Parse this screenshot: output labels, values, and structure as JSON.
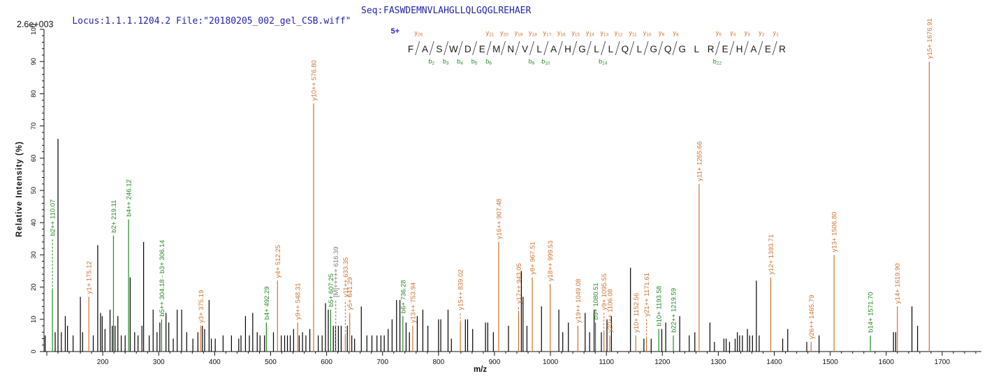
{
  "header": {
    "locus_text": "Locus:1.1.1.1204.2 File:\"20180205_002_gel_CSB.wiff\"",
    "seq_label": "Seq:",
    "sequence": "FASWDEMNVLAHGLLQLGQGLREHAER",
    "max_intensity": "2.6e+003"
  },
  "colors": {
    "header_blue": "#2323ae",
    "y_ion_orange": "#d2722e",
    "b_ion_green": "#228b22",
    "precursor_grey": "#7d7d7d",
    "peak_black": "#000000",
    "axis_black": "#111111"
  },
  "annotation": {
    "charge": "5+",
    "residues": [
      "F",
      "A",
      "S",
      "W",
      "D",
      "E",
      "M",
      "N",
      "V",
      "L",
      "A",
      "H",
      "G",
      "L",
      "L",
      "Q",
      "L",
      "G",
      "Q",
      "G",
      "L",
      "R",
      "E",
      "H",
      "A",
      "E",
      "R"
    ],
    "y_ions": {
      "1": "y26",
      "6": "y21",
      "7": "y20",
      "8": "y19",
      "9": "y18",
      "10": "y17",
      "11": "y16",
      "12": "y15",
      "13": "y14",
      "14": "y13",
      "15": "y12",
      "16": "y11",
      "17": "y10",
      "18": "y9",
      "19": "y8",
      "22": "y5",
      "23": "y4",
      "24": "y3",
      "25": "y2",
      "26": "y1"
    },
    "b_ions": {
      "2": "b2",
      "3": "b3",
      "4": "b4",
      "5": "b5",
      "6": "b6",
      "9": "b9",
      "10": "b10",
      "14": "b14",
      "22": "b22"
    }
  },
  "chart_data": {
    "type": "bar",
    "subtype": "tandem-ms-stick-spectrum",
    "title": "",
    "xlabel": "m/z",
    "ylabel": "Relative Intensity (%)",
    "x_range": [
      95,
      1770
    ],
    "ylim": [
      0,
      100
    ],
    "x_major_ticks": [
      100,
      200,
      300,
      400,
      500,
      600,
      700,
      800,
      900,
      1000,
      1100,
      1200,
      1300,
      1400,
      1500,
      1600,
      1700
    ],
    "x_tick_labels": [
      200,
      300,
      400,
      500,
      600,
      700,
      800,
      900,
      1000,
      1100,
      1200,
      1300,
      1400,
      1500,
      1600,
      1700
    ],
    "x_minor_step": 20,
    "y_major_ticks": [
      0,
      10,
      20,
      30,
      40,
      50,
      60,
      70,
      80,
      90,
      100
    ],
    "y_minor_step": 2,
    "grid": false,
    "legend": "none",
    "labeled_peaks": [
      {
        "label": "b2++ 110.07",
        "mz": 110.07,
        "intensity": 19,
        "series": "b",
        "label_y": 35,
        "dashed": true
      },
      {
        "label": "y1+ 175.12",
        "mz": 175.12,
        "intensity": 17,
        "series": "y"
      },
      {
        "label": "b2+ 219.11",
        "mz": 219.11,
        "intensity": 36,
        "series": "b"
      },
      {
        "label": "b4++ 246.12",
        "mz": 246.12,
        "intensity": 41,
        "series": "b"
      },
      {
        "label": "b5++ 304.18 - b3+ 306.14",
        "mz": 305.2,
        "intensity": 10,
        "series": "b"
      },
      {
        "label": "y3+ 375.19",
        "mz": 375.19,
        "intensity": 8,
        "series": "y"
      },
      {
        "label": "b4+ 492.29",
        "mz": 492.29,
        "intensity": 9,
        "series": "b"
      },
      {
        "label": "y4+ 512.25",
        "mz": 512.25,
        "intensity": 22,
        "series": "y"
      },
      {
        "label": "y9++ 548.31",
        "mz": 548.31,
        "intensity": 9,
        "series": "y"
      },
      {
        "label": "y10++ 576.80",
        "mz": 576.8,
        "intensity": 77,
        "series": "y"
      },
      {
        "label": "b5+ 607.25",
        "mz": 607.25,
        "intensity": 13,
        "series": "b"
      },
      {
        "label": "[M]+++++ 616.39",
        "mz": 616.39,
        "intensity": 0,
        "series": "precursor",
        "label_y": 16,
        "dashed": true
      },
      {
        "label": "y11++ 633.35",
        "mz": 633.35,
        "intensity": 5,
        "series": "y",
        "label_y": 16,
        "dashed": true
      },
      {
        "label": "y5+ 641.29",
        "mz": 641.29,
        "intensity": 12,
        "series": "y"
      },
      {
        "label": "b6+ 736.28",
        "mz": 736.28,
        "intensity": 11,
        "series": "b"
      },
      {
        "label": "y13++ 753.94",
        "mz": 753.94,
        "intensity": 8,
        "series": "y"
      },
      {
        "label": "y15++ 839.02",
        "mz": 839.02,
        "intensity": 9,
        "series": "y",
        "label_y": 12,
        "dashed": true
      },
      {
        "label": "y16++ 907.48",
        "mz": 907.48,
        "intensity": 34,
        "series": "y"
      },
      {
        "label": "y17++ 943.05",
        "mz": 943.05,
        "intensity": 12,
        "series": "y",
        "label_y": 14,
        "dashed": true
      },
      {
        "label": "y8+ 967.51",
        "mz": 967.51,
        "intensity": 23,
        "series": "y"
      },
      {
        "label": "y18++ 999.53",
        "mz": 999.53,
        "intensity": 21,
        "series": "y"
      },
      {
        "label": "y19++ 1049.08",
        "mz": 1049.08,
        "intensity": 8,
        "series": "y"
      },
      {
        "label": "b9+ 1080.51",
        "mz": 1080.51,
        "intensity": 9,
        "series": "b"
      },
      {
        "label": "y9+ 1095.55",
        "mz": 1095.55,
        "intensity": 6,
        "series": "y",
        "label_y": 12,
        "dashed": true
      },
      {
        "label": "y20++ 1106.08",
        "mz": 1106.08,
        "intensity": 5,
        "series": "y"
      },
      {
        "label": "y10+ 1152.56",
        "mz": 1152.56,
        "intensity": 5,
        "series": "y"
      },
      {
        "label": "y21++ 1171.61",
        "mz": 1171.61,
        "intensity": 4,
        "series": "y",
        "label_y": 10,
        "dashed": true
      },
      {
        "label": "b10+ 1193.58",
        "mz": 1193.58,
        "intensity": 7,
        "series": "b"
      },
      {
        "label": "b22++ 1219.59",
        "mz": 1219.59,
        "intensity": 5,
        "series": "b"
      },
      {
        "label": "y11+ 1265.66",
        "mz": 1265.66,
        "intensity": 52,
        "series": "y"
      },
      {
        "label": "y12+ 1393.71",
        "mz": 1393.71,
        "intensity": 23,
        "series": "y"
      },
      {
        "label": "y26++ 1465.79",
        "mz": 1465.79,
        "intensity": 3,
        "series": "y"
      },
      {
        "label": "y13+ 1506.80",
        "mz": 1506.8,
        "intensity": 30,
        "series": "y"
      },
      {
        "label": "b14+ 1571.70",
        "mz": 1571.7,
        "intensity": 5,
        "series": "b"
      },
      {
        "label": "y14+ 1619.90",
        "mz": 1619.9,
        "intensity": 14,
        "series": "y"
      },
      {
        "label": "y15+ 1676.91",
        "mz": 1676.91,
        "intensity": 90,
        "series": "y"
      }
    ],
    "unlabeled_peaks": [
      [
        97,
        5
      ],
      [
        115,
        6
      ],
      [
        120,
        66
      ],
      [
        126,
        6
      ],
      [
        133,
        11
      ],
      [
        137,
        8
      ],
      [
        147,
        5
      ],
      [
        160,
        17
      ],
      [
        164,
        6
      ],
      [
        183,
        5
      ],
      [
        191,
        33
      ],
      [
        196,
        12
      ],
      [
        199,
        11
      ],
      [
        204,
        7
      ],
      [
        213,
        13
      ],
      [
        217,
        8
      ],
      [
        222,
        8
      ],
      [
        227,
        11
      ],
      [
        233,
        5
      ],
      [
        240,
        5
      ],
      [
        249,
        23
      ],
      [
        257,
        6
      ],
      [
        263,
        5
      ],
      [
        270,
        8
      ],
      [
        273,
        34
      ],
      [
        283,
        5
      ],
      [
        290,
        13
      ],
      [
        297,
        6
      ],
      [
        302,
        9
      ],
      [
        313,
        12
      ],
      [
        318,
        9
      ],
      [
        326,
        4
      ],
      [
        333,
        13
      ],
      [
        341,
        13
      ],
      [
        350,
        6
      ],
      [
        361,
        4
      ],
      [
        370,
        6
      ],
      [
        378,
        8
      ],
      [
        382,
        7
      ],
      [
        390,
        16
      ],
      [
        394,
        4
      ],
      [
        401,
        4
      ],
      [
        415,
        5
      ],
      [
        430,
        5
      ],
      [
        443,
        4
      ],
      [
        447,
        5
      ],
      [
        455,
        11
      ],
      [
        462,
        5
      ],
      [
        468,
        12
      ],
      [
        476,
        6
      ],
      [
        481,
        5
      ],
      [
        489,
        5
      ],
      [
        505,
        6
      ],
      [
        519,
        5
      ],
      [
        525,
        5
      ],
      [
        530,
        5
      ],
      [
        535,
        5
      ],
      [
        541,
        7
      ],
      [
        551,
        5
      ],
      [
        557,
        6
      ],
      [
        563,
        5
      ],
      [
        570,
        7
      ],
      [
        585,
        5
      ],
      [
        592,
        5
      ],
      [
        598,
        15
      ],
      [
        603,
        13
      ],
      [
        612,
        8
      ],
      [
        616,
        8
      ],
      [
        621,
        8
      ],
      [
        626,
        8
      ],
      [
        637,
        8
      ],
      [
        645,
        5
      ],
      [
        650,
        4
      ],
      [
        662,
        14
      ],
      [
        672,
        5
      ],
      [
        681,
        5
      ],
      [
        690,
        5
      ],
      [
        697,
        5
      ],
      [
        703,
        5
      ],
      [
        710,
        7
      ],
      [
        717,
        10
      ],
      [
        725,
        16
      ],
      [
        731,
        16
      ],
      [
        742,
        9
      ],
      [
        748,
        6
      ],
      [
        762,
        11
      ],
      [
        772,
        13
      ],
      [
        781,
        8
      ],
      [
        800,
        10
      ],
      [
        804,
        10
      ],
      [
        817,
        13
      ],
      [
        823,
        4
      ],
      [
        848,
        10
      ],
      [
        852,
        10
      ],
      [
        861,
        7
      ],
      [
        884,
        9
      ],
      [
        888,
        9
      ],
      [
        898,
        6
      ],
      [
        925,
        8
      ],
      [
        948,
        25
      ],
      [
        951,
        17
      ],
      [
        958,
        8
      ],
      [
        984,
        14
      ],
      [
        1015,
        13
      ],
      [
        1022,
        6
      ],
      [
        1032,
        9
      ],
      [
        1062,
        12
      ],
      [
        1070,
        6
      ],
      [
        1078,
        13
      ],
      [
        1091,
        6
      ],
      [
        1101,
        10
      ],
      [
        1109,
        11
      ],
      [
        1143,
        26
      ],
      [
        1167,
        4
      ],
      [
        1180,
        4
      ],
      [
        1199,
        7
      ],
      [
        1206,
        9
      ],
      [
        1231,
        11
      ],
      [
        1248,
        5
      ],
      [
        1258,
        6
      ],
      [
        1285,
        9
      ],
      [
        1293,
        3
      ],
      [
        1310,
        4
      ],
      [
        1314,
        4
      ],
      [
        1320,
        3
      ],
      [
        1330,
        4
      ],
      [
        1334,
        6
      ],
      [
        1338,
        5
      ],
      [
        1343,
        5
      ],
      [
        1352,
        7
      ],
      [
        1356,
        5
      ],
      [
        1361,
        5
      ],
      [
        1368,
        22
      ],
      [
        1373,
        5
      ],
      [
        1415,
        4
      ],
      [
        1424,
        7
      ],
      [
        1458,
        3
      ],
      [
        1480,
        5
      ],
      [
        1613,
        6
      ],
      [
        1617,
        6
      ],
      [
        1646,
        14
      ],
      [
        1656,
        8
      ]
    ]
  }
}
